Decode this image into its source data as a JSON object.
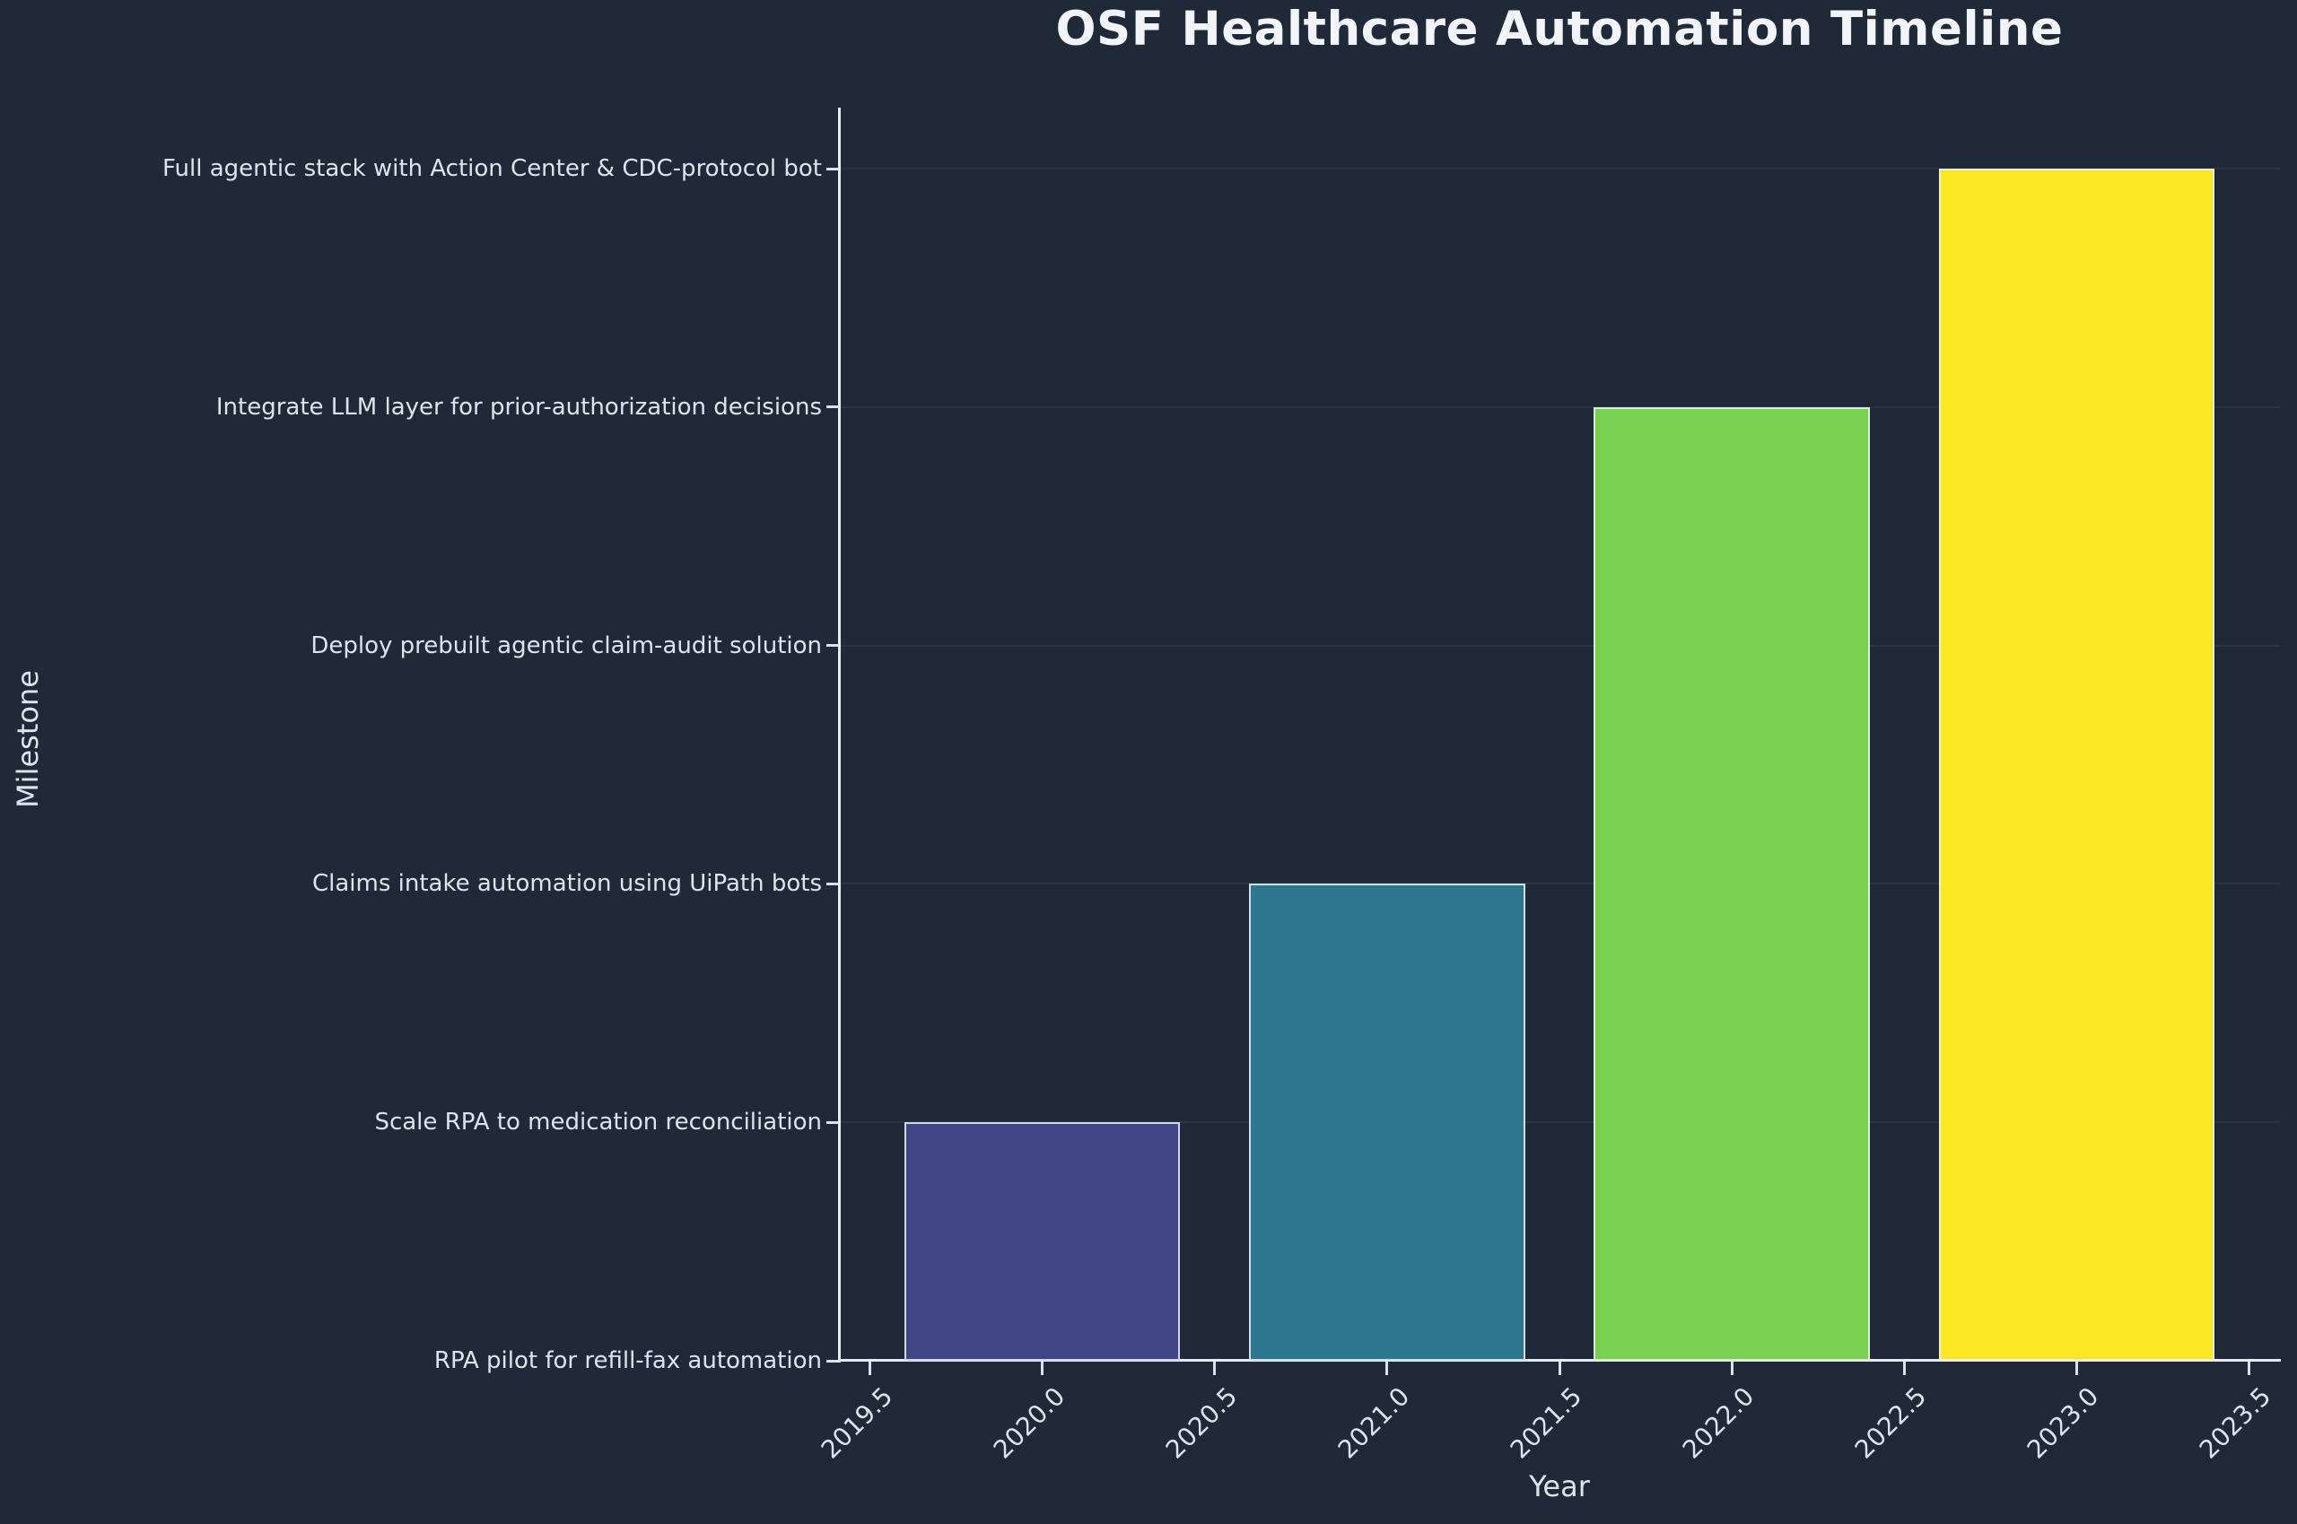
{
  "chart_data": {
    "type": "bar",
    "title": "OSF Healthcare Automation Timeline",
    "xlabel": "Year",
    "ylabel": "Milestone",
    "x": [
      2020,
      2021,
      2022,
      2023
    ],
    "values": [
      1,
      2,
      4,
      5
    ],
    "bar_milestones": [
      "Scale RPA to medication reconciliation",
      "Claims intake automation using UiPath bots",
      "Integrate LLM layer for prior-authorization decisions",
      "Full agentic stack with Action Center & CDC-protocol bot"
    ],
    "bar_colors": [
      "#414487",
      "#2a788e",
      "#7ad151",
      "#fde725"
    ],
    "bar_width_years": 0.8,
    "y_tick_labels": [
      "RPA pilot for refill-fax automation",
      "Scale RPA to medication reconciliation",
      "Claims intake automation using UiPath bots",
      "Deploy prebuilt agentic claim-audit solution",
      "Integrate LLM layer for prior-authorization decisions",
      "Full agentic stack with Action Center & CDC-protocol bot"
    ],
    "x_ticks": [
      2019.5,
      2020.0,
      2020.5,
      2021.0,
      2021.5,
      2022.0,
      2022.5,
      2023.0,
      2023.5
    ],
    "x_tick_labels": [
      "2019.5",
      "2020.0",
      "2020.5",
      "2021.0",
      "2021.5",
      "2022.0",
      "2022.5",
      "2023.0",
      "2023.5"
    ],
    "xlim": [
      2019.41,
      2023.59
    ],
    "ylim": [
      0,
      5.25
    ],
    "grid": "horizontal",
    "x_tick_rotation_deg": 45,
    "colors": {
      "background": "#1f2937",
      "axis": "#e7edf3",
      "tick_text": "#dde4ed",
      "title_text": "#f1f5f9",
      "gridline": "rgba(255,255,255,0.055)",
      "bar_edge": "rgba(236,241,247,0.85)"
    }
  }
}
